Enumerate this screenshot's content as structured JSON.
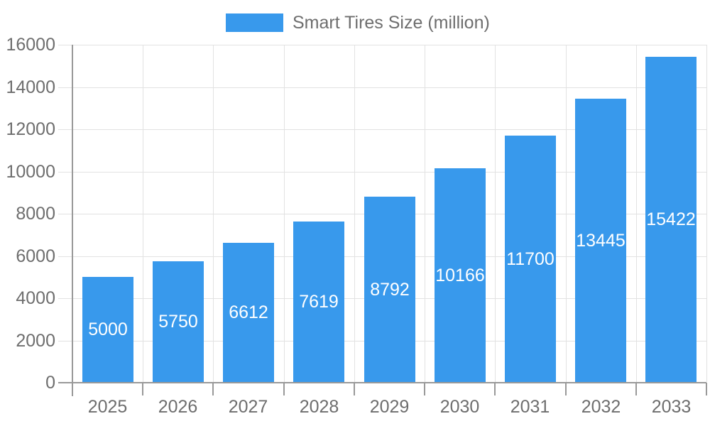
{
  "legend": {
    "label": "Smart Tires Size (million)"
  },
  "colors": {
    "bar": "#3899ec",
    "grid": "#e2e2e2",
    "axis": "#999999",
    "text": "#6e6e6e",
    "bar_label": "#ffffff",
    "background": "#ffffff"
  },
  "chart_data": {
    "type": "bar",
    "title": "Smart Tires Size (million)",
    "categories": [
      "2025",
      "2026",
      "2027",
      "2028",
      "2029",
      "2030",
      "2031",
      "2032",
      "2033"
    ],
    "values": [
      5000,
      5750,
      6612,
      7619,
      8792,
      10166,
      11700,
      13445,
      15422
    ],
    "series": [
      {
        "name": "Smart Tires Size (million)",
        "values": [
          5000,
          5750,
          6612,
          7619,
          8792,
          10166,
          11700,
          13445,
          15422
        ]
      }
    ],
    "xlabel": "",
    "ylabel": "",
    "ylim": [
      0,
      16000
    ],
    "yticks": [
      0,
      2000,
      4000,
      6000,
      8000,
      10000,
      12000,
      14000,
      16000
    ],
    "grid": true,
    "legend_position": "top-center",
    "bar_labels": "inside-middle"
  }
}
